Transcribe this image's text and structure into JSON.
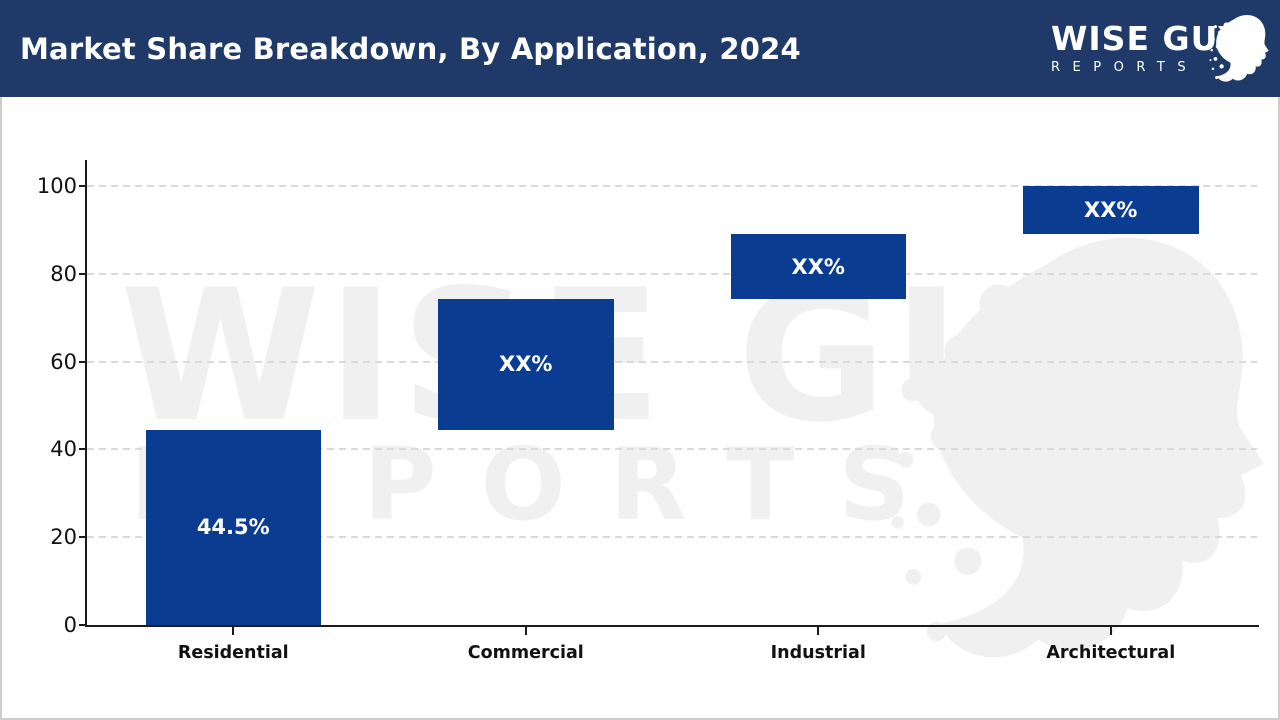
{
  "header": {
    "title": "Market Share Breakdown, By Application, 2024",
    "logo": {
      "wordmark": "WISE GUY",
      "subtext": "REPORTS"
    }
  },
  "watermark": {
    "line1": "WISE GUY",
    "line2": "REPORTS"
  },
  "colors": {
    "header_bg": "#1f3a68",
    "bar": "#0a3d91",
    "bar_label": "#ffffff",
    "watermark": "#f0f0f0",
    "gridline": "#dadada",
    "axis": "#1a1a1a",
    "frame_border": "#cccccc"
  },
  "chart_data": {
    "type": "bar",
    "variant": "waterfall",
    "title": "Market Share Breakdown, By Application, 2024",
    "xlabel": "",
    "ylabel": "",
    "ylim": [
      0,
      100
    ],
    "yticks": [
      0,
      20,
      40,
      60,
      80,
      100
    ],
    "grid": "horizontal-dashed",
    "legend": "none",
    "categories": [
      "Residential",
      "Commercial",
      "Industrial",
      "Architectural"
    ],
    "segments": [
      {
        "category": "Residential",
        "label": "44.5%",
        "start": 0,
        "end": 44.5
      },
      {
        "category": "Commercial",
        "label": "XX%",
        "start": 44.5,
        "end": 74.2
      },
      {
        "category": "Industrial",
        "label": "XX%",
        "start": 74.2,
        "end": 89.0
      },
      {
        "category": "Architectural",
        "label": "XX%",
        "start": 89.0,
        "end": 100
      }
    ],
    "bar_labels": [
      "44.5%",
      "XX%",
      "XX%",
      "XX%"
    ]
  }
}
